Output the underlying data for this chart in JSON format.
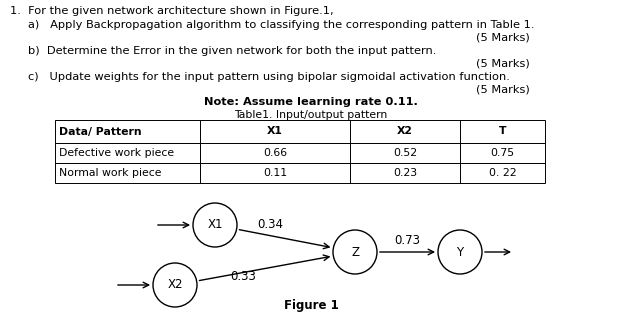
{
  "line0": "1.  For the given network architecture shown in Figure.1,",
  "line_a": "a)   Apply Backpropagation algorithm to classifying the corresponding pattern in Table 1.",
  "marks_a": "(5 Marks)",
  "line_b": "b)  Determine the Error in the given network for both the input pattern.",
  "marks_b": "(5 Marks)",
  "line_c": "c)   Update weights for the input pattern using bipolar sigmoidal activation function.",
  "marks_c": "(5 Marks)",
  "note": "Note: Assume learning rate 0.11.",
  "table_title": "Table1. Input/output pattern",
  "table_headers": [
    "Data/ Pattern",
    "X1",
    "X2",
    "T"
  ],
  "table_rows": [
    [
      "Defective work piece",
      "0.66",
      "0.52",
      "0.75"
    ],
    [
      "Normal work piece",
      "0.11",
      "0.23",
      "0. 22"
    ]
  ],
  "fig_label": "Figure 1",
  "weight_X1_Z": "0.34",
  "weight_X2_Z": "0.33",
  "weight_Z_Y": "0.73",
  "bg_color": "#ffffff",
  "text_color": "#000000"
}
